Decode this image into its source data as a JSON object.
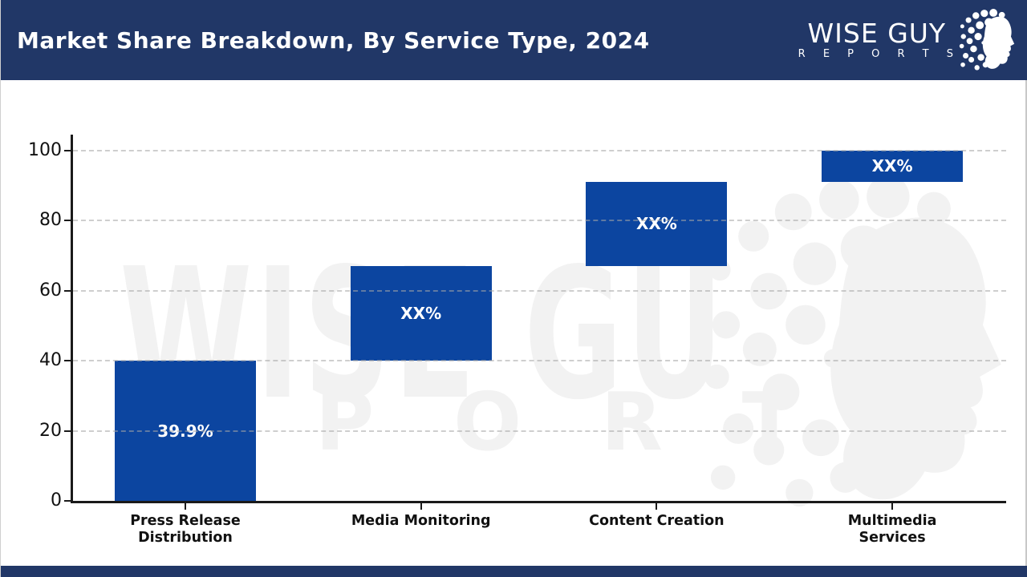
{
  "header": {
    "title": "Market Share Breakdown, By Service Type, 2024",
    "logo": {
      "line1": "WISE GUY",
      "line2": "R E P O R T S"
    }
  },
  "watermark": {
    "line1": "WISE GU",
    "line2": "P O R T S"
  },
  "colors": {
    "header_bg": "#213767",
    "footer_bg": "#213767",
    "bar_blue": "#0c45a0",
    "watermark_gray": "#f2f2f2"
  },
  "chart_data": {
    "type": "bar",
    "subtype": "waterfall",
    "title": "Market Share Breakdown, By Service Type, 2024",
    "xlabel": "",
    "ylabel": "",
    "ylim": [
      0,
      100
    ],
    "yticks": [
      0,
      20,
      40,
      60,
      80,
      100
    ],
    "grid": "dashed-horizontal",
    "legend": "none",
    "categories": [
      [
        "Press Release",
        "Distribution"
      ],
      [
        "Media Monitoring"
      ],
      [
        "Content Creation"
      ],
      [
        "Multimedia",
        "Services"
      ]
    ],
    "segments": [
      {
        "category": "Press Release Distribution",
        "start": 0,
        "end": 39.9,
        "label": "39.9%"
      },
      {
        "category": "Media Monitoring",
        "start": 39.9,
        "end": 67,
        "label": "XX%"
      },
      {
        "category": "Content Creation",
        "start": 67,
        "end": 91,
        "label": "XX%"
      },
      {
        "category": "Multimedia Services",
        "start": 91,
        "end": 100,
        "label": "XX%"
      }
    ]
  }
}
